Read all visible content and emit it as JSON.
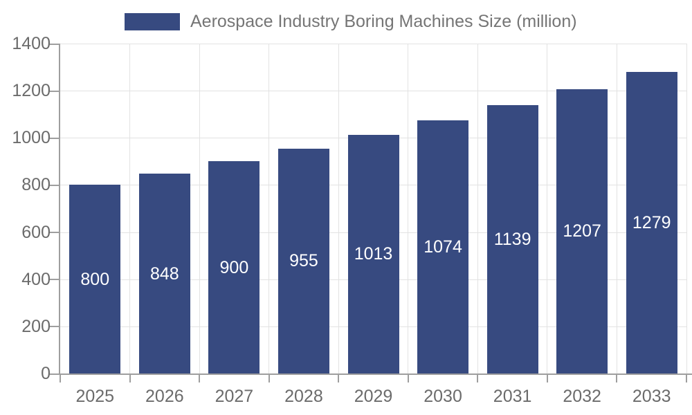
{
  "chart_data": {
    "type": "bar",
    "title": "Aerospace Industry Boring Machines Size (million)",
    "legend": {
      "label": "Aerospace Industry Boring Machines Size (million)",
      "position": "top"
    },
    "categories": [
      "2025",
      "2026",
      "2027",
      "2028",
      "2029",
      "2030",
      "2031",
      "2032",
      "2033"
    ],
    "values": [
      800,
      848,
      900,
      955,
      1013,
      1074,
      1139,
      1207,
      1279
    ],
    "value_labels_shown": true,
    "xlabel": "",
    "ylabel": "",
    "ylim": [
      0,
      1400
    ],
    "yticks": [
      0,
      200,
      400,
      600,
      800,
      1000,
      1200,
      1400
    ],
    "grid": true,
    "colors": {
      "bar": "#374a80",
      "value_label": "#ffffff",
      "tick_label": "#6b6b6b",
      "legend_text": "#757575",
      "grid_line": "#e2e2e2",
      "axis_line": "#9e9e9e",
      "background": "#ffffff"
    }
  }
}
